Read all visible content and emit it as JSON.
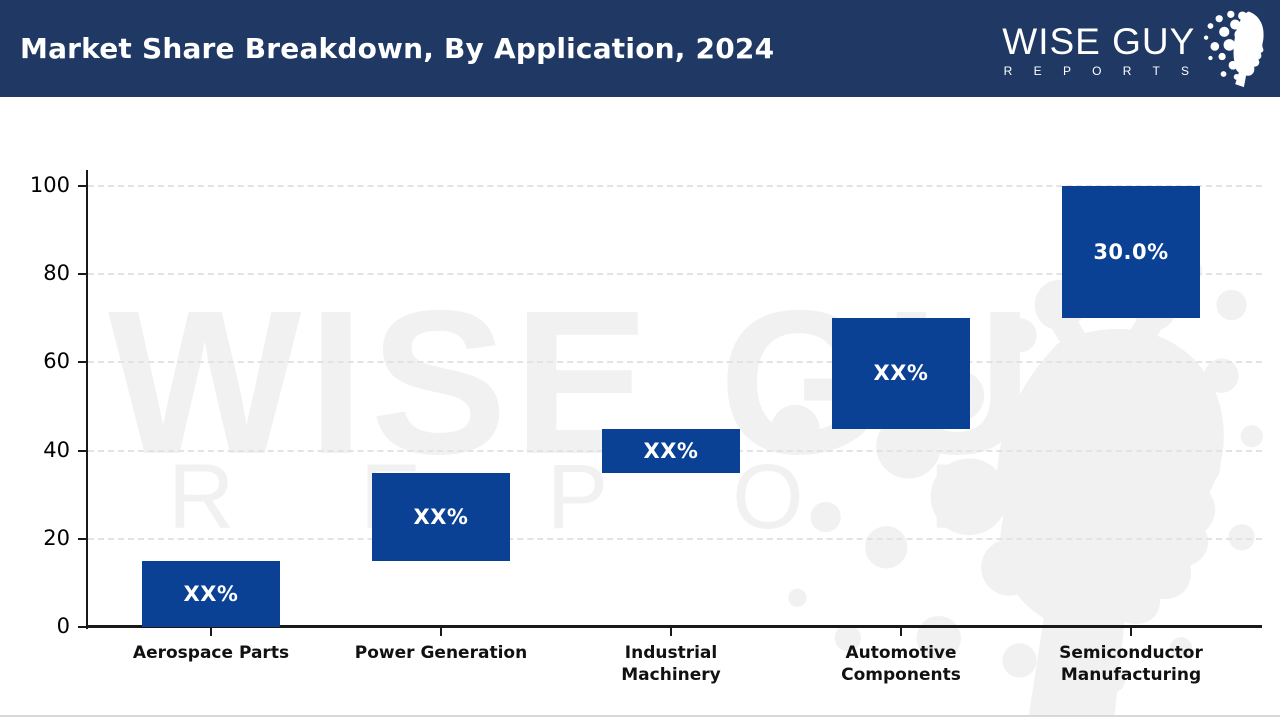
{
  "header": {
    "title": "Market Share Breakdown, By Application, 2024",
    "logo": {
      "line1": "WISE GUY",
      "line2": "R E P O R T S"
    }
  },
  "watermark": {
    "line1": "WISE GUY",
    "line2": "R E P O R T S"
  },
  "chart_data": {
    "type": "bar",
    "subtype": "waterfall",
    "title": "Market Share Breakdown, By Application, 2024",
    "categories": [
      "Aerospace Parts",
      "Power Generation",
      "Industrial\nMachinery",
      "Automotive\nComponents",
      "Semiconductor\nManufacturing"
    ],
    "bars": [
      {
        "category": "Aerospace Parts",
        "start": 0,
        "end": 15,
        "value": 15,
        "data_label": "XX%"
      },
      {
        "category": "Power Generation",
        "start": 15,
        "end": 35,
        "value": 20,
        "data_label": "XX%"
      },
      {
        "category": "Industrial Machinery",
        "start": 35,
        "end": 45,
        "value": 10,
        "data_label": "XX%"
      },
      {
        "category": "Automotive Components",
        "start": 45,
        "end": 70,
        "value": 25,
        "data_label": "XX%"
      },
      {
        "category": "Semiconductor Manufacturing",
        "start": 70,
        "end": 100,
        "value": 30,
        "data_label": "30.0%"
      }
    ],
    "ylim": [
      0,
      100
    ],
    "yticks": [
      0,
      20,
      40,
      60,
      80,
      100
    ],
    "xlabel": "",
    "ylabel": "",
    "grid": "horizontal-dashed",
    "legend": "none"
  },
  "colors": {
    "header_bg": "#1f3864",
    "bar": "#0a4195",
    "bar_label": "#ffffff",
    "axis": "#191919",
    "grid": "#e3e3e3",
    "tick_label": "#000000",
    "watermark": "#f1f1f1",
    "footer_line": "#d8d8d8",
    "logo": "#ffffff"
  }
}
